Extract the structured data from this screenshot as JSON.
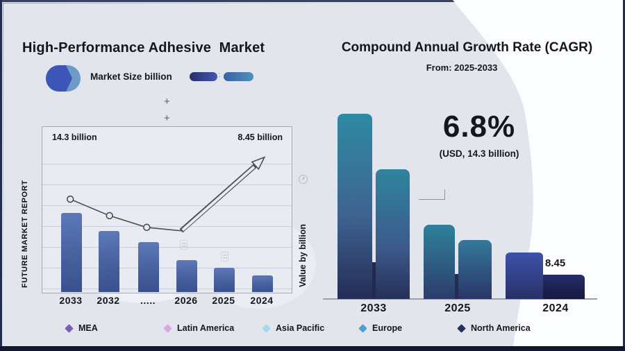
{
  "header": {
    "title": "High-Performance Adhesive  Market"
  },
  "market_size_legend": {
    "label": "Market Size billion",
    "separator": ":"
  },
  "decorations": {
    "plus_marks": [
      "+",
      "+"
    ]
  },
  "left_chart": {
    "watermark": "FUTURE MARKET REPORT",
    "start_label": "14.3 billion",
    "end_label": "8.45 billion"
  },
  "middle": {
    "value_axis_label": "Value by billion"
  },
  "right_chart": {
    "title": "Compound Annual Growth Rate (CAGR)",
    "subtitle": "From: 2025-2033",
    "cagr_value": "6.8%",
    "cagr_note": "(USD, 14.3 billion)",
    "value_2024_label": "8.45"
  },
  "bottom_legend": {
    "items": [
      {
        "label": "MEA",
        "color": "#7a5fb5"
      },
      {
        "label": "Latin America",
        "color": "#d9a9dc"
      },
      {
        "label": "Asia Pacific",
        "color": "#a9d6ec"
      },
      {
        "label": "Europe",
        "color": "#4e9fd6"
      },
      {
        "label": "North America",
        "color": "#27305e"
      }
    ]
  },
  "chart_data": [
    {
      "type": "bar",
      "title": "Market Size billion",
      "categories": [
        "2033",
        "2032",
        ".....",
        "2026",
        "2025",
        "2024"
      ],
      "values_billion_usd": [
        14.3,
        null,
        null,
        null,
        null,
        8.45
      ],
      "bar_rel_heights": [
        1.0,
        0.77,
        0.63,
        0.4,
        0.31,
        0.21
      ],
      "annotations": [
        "14.3 billion (top-left)",
        "8.45 billion (top-right)"
      ],
      "trend": "marker line declines from 2033 toward mid-years, then hollow outlined arrow rises sharply to upper right",
      "grid": "horizontal gridlines on",
      "legend_position": "top-left"
    },
    {
      "type": "bar",
      "title": "Compound Annual Growth Rate (CAGR)",
      "subtitle": "From: 2025-2033",
      "cagr_percent": 6.8,
      "base_note": "(USD, 14.3 billion)",
      "categories": [
        "2033",
        "2025",
        "2024"
      ],
      "series": [
        {
          "name": "primary",
          "rel_heights": [
            1.0,
            0.4,
            0.25
          ]
        },
        {
          "name": "secondary",
          "rel_heights": [
            0.7,
            0.32,
            0.13
          ]
        }
      ],
      "data_labels": {
        "2024": "8.45"
      },
      "ylabel": "Value by billion",
      "legend_position": "bottom"
    }
  ],
  "colors": {
    "background": "#e2e5ec",
    "left_bar_top": "#5d79ba",
    "left_bar_bottom": "#3a508e",
    "right_bar_teal_top": "#2e8aa2",
    "right_bar_navy_bottom": "#232d55",
    "right_bar_2024_primary": "#3e52aa",
    "right_bar_2024_secondary": "#1a2048",
    "frame": "#12172c"
  }
}
